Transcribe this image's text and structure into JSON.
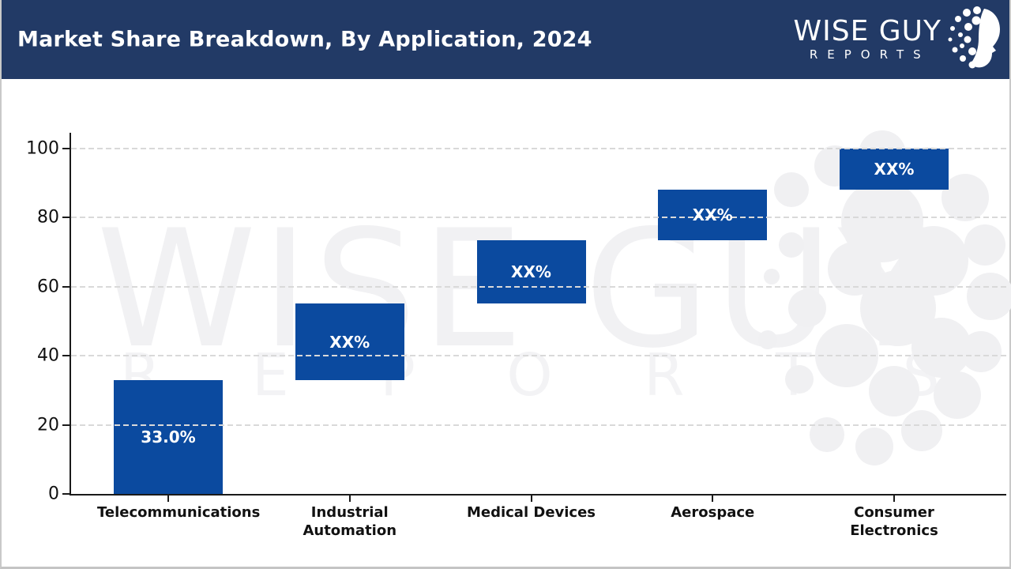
{
  "header": {
    "title": "Market Share Breakdown, By Application, 2024",
    "logo": {
      "line1": "WISE GUY",
      "line2": "REPORTS"
    }
  },
  "watermark": {
    "line1": "WISE GUY",
    "line2": "REPORTS"
  },
  "chart_data": {
    "type": "bar",
    "subtype": "waterfall-floating-bars",
    "title": "Market Share Breakdown, By Application, 2024",
    "categories": [
      "Telecommunications",
      "Industrial Automation",
      "Medical Devices",
      "Aerospace",
      "Consumer Electronics"
    ],
    "segments": [
      {
        "category": "Telecommunications",
        "start": 0,
        "end": 33.0,
        "value": 33.0,
        "label": "33.0%"
      },
      {
        "category": "Industrial Automation",
        "start": 33.0,
        "end": 55.0,
        "value": 22.0,
        "label": "XX%"
      },
      {
        "category": "Medical Devices",
        "start": 55.0,
        "end": 73.4,
        "value": 18.4,
        "label": "XX%"
      },
      {
        "category": "Aerospace",
        "start": 73.4,
        "end": 88.1,
        "value": 14.7,
        "label": "XX%"
      },
      {
        "category": "Consumer Electronics",
        "start": 88.1,
        "end": 100.0,
        "value": 11.9,
        "label": "XX%"
      }
    ],
    "ylim": [
      0,
      100
    ],
    "yticks": [
      0,
      20,
      40,
      60,
      80,
      100
    ],
    "grid": "horizontal dashed, drawn over bars",
    "legend": "none",
    "bar_color": "#0b4a9f",
    "bar_label_color": "#ffffff"
  },
  "colors": {
    "header_bg": "#223a66",
    "header_text": "#ffffff",
    "bar": "#0b4a9f",
    "grid": "#d9d9d9",
    "axis": "#1a1a1a",
    "watermark": "#f1f1f3"
  }
}
